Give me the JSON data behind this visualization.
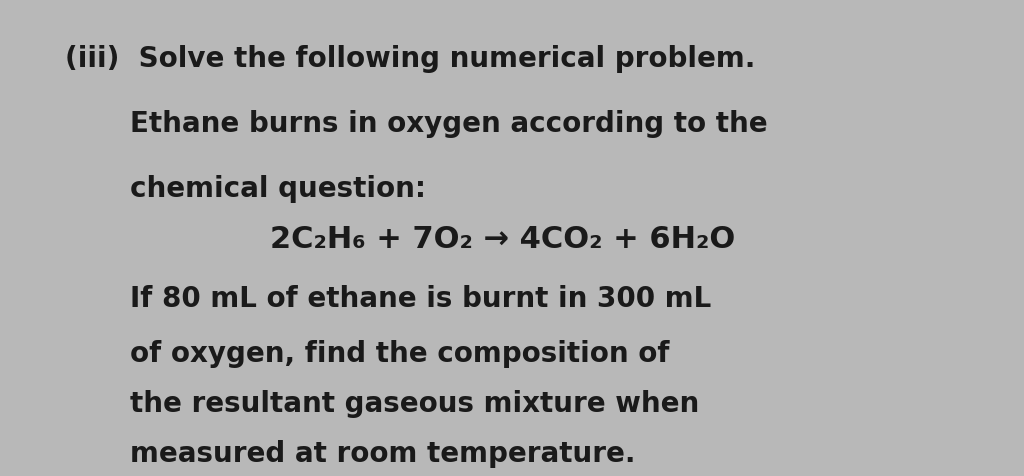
{
  "bg_color": "#b8b8b8",
  "text_color": "#1a1a1a",
  "line1": "(iii)  Solve the following numerical problem.",
  "line2": "Ethane burns in oxygen according to the",
  "line3": "chemical question:",
  "equation": "2C₂H₆ + 7O₂ → 4CO₂ + 6H₂O",
  "line4": "If 80 mL of ethane is burnt in 300 mL",
  "line5": "of oxygen, find the composition of",
  "line6": "the resultant gaseous mixture when",
  "line7": "measured at room temperature.",
  "font_size_main": 20,
  "font_size_eq": 22,
  "fig_width": 10.24,
  "fig_height": 4.77,
  "dpi": 100
}
